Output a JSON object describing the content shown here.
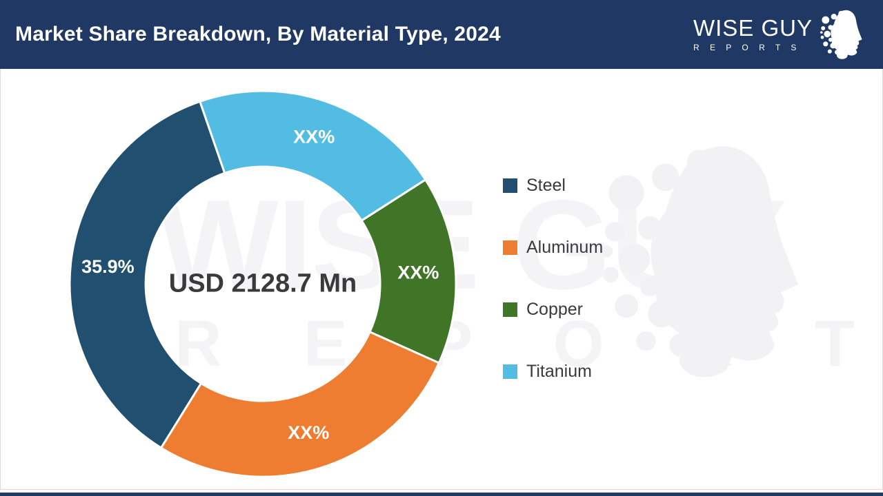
{
  "header": {
    "title": "Market Share Breakdown, By Material Type, 2024",
    "logo": {
      "line1": "WISE GUY",
      "line2": "R E P O R T S"
    }
  },
  "watermark": {
    "line1": "WISE GUY",
    "line2": "R E P O R T S"
  },
  "chart_data": {
    "type": "donut",
    "title": "Market Share Breakdown, By Material Type, 2024",
    "center_label": "USD 2128.7 Mn",
    "start_angle_deg": 109,
    "direction": "ccw",
    "legend_position": "right",
    "segments": [
      {
        "name": "Steel",
        "value": 35.9,
        "display": "35.9%",
        "color": "#214F6F"
      },
      {
        "name": "Aluminum",
        "value": 27.1,
        "display": "XX%",
        "color": "#EE7D31"
      },
      {
        "name": "Copper",
        "value": 15.8,
        "display": "XX%",
        "color": "#407528"
      },
      {
        "name": "Titanium",
        "value": 21.2,
        "display": "XX%",
        "color": "#53BCE3"
      }
    ]
  },
  "colors": {
    "header_bg": "#203864",
    "footer_bar": "#203864",
    "text_dark": "#3a3a3a",
    "watermark": "#f2f2f4"
  }
}
